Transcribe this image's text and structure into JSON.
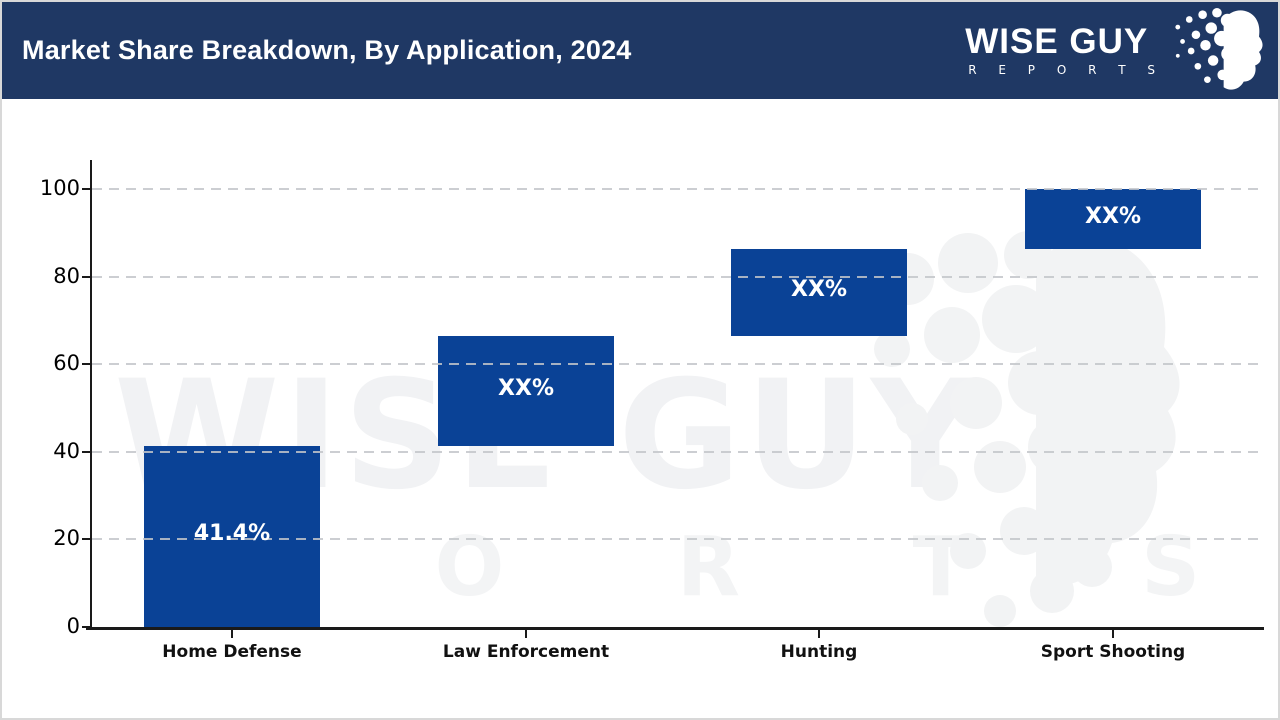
{
  "header": {
    "title": "Market Share Breakdown, By Application, 2024",
    "logo": {
      "line1": "WISE GUY",
      "line2": "REPORTS"
    }
  },
  "watermark": {
    "line1": "WISE GUY",
    "line2": "PORTS"
  },
  "colors": {
    "header_bg": "#1f3864",
    "bar": "#0a4296",
    "bar_label": "#ffffff",
    "gridline": "#c9cccf",
    "axis": "#1a1a1a",
    "watermark": "#f1f2f4"
  },
  "chart_data": {
    "type": "bar",
    "subtype": "waterfall",
    "title": "Market Share Breakdown, By Application, 2024",
    "categories": [
      "Home Defense",
      "Law Enforcement",
      "Hunting",
      "Sport Shooting"
    ],
    "segments": [
      {
        "category": "Home Defense",
        "start": 0,
        "end": 41.4,
        "label": "41.4%"
      },
      {
        "category": "Law Enforcement",
        "start": 41.4,
        "end": 66.4,
        "label": "XX%"
      },
      {
        "category": "Hunting",
        "start": 66.4,
        "end": 86.4,
        "label": "XX%"
      },
      {
        "category": "Sport Shooting",
        "start": 86.4,
        "end": 100,
        "label": "XX%"
      }
    ],
    "yticks": [
      0,
      20,
      40,
      60,
      80,
      100
    ],
    "ylim": [
      0,
      100
    ],
    "xlabel": "",
    "ylabel": "",
    "grid": "dashed-horizontal",
    "legend": "none"
  }
}
